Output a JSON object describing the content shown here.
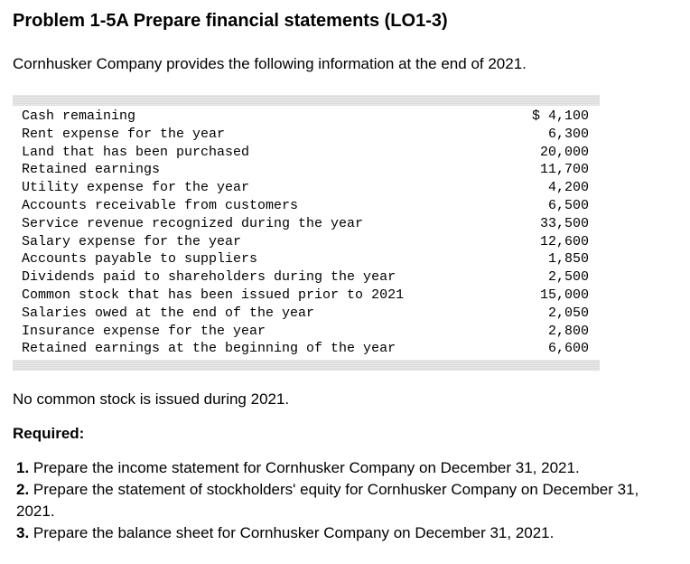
{
  "title": "Problem 1-5A Prepare financial statements (LO1-3)",
  "intro": "Cornhusker Company provides the following information at the end of 2021.",
  "table": {
    "rows": [
      {
        "label": "Cash remaining",
        "value": "$ 4,100"
      },
      {
        "label": "Rent expense for the year",
        "value": "6,300"
      },
      {
        "label": "Land that has been purchased",
        "value": "20,000"
      },
      {
        "label": "Retained earnings",
        "value": "11,700"
      },
      {
        "label": "Utility expense for the year",
        "value": "4,200"
      },
      {
        "label": "Accounts receivable from customers",
        "value": "6,500"
      },
      {
        "label": "Service revenue recognized during the year",
        "value": "33,500"
      },
      {
        "label": "Salary expense for the year",
        "value": "12,600"
      },
      {
        "label": "Accounts payable to suppliers",
        "value": "1,850"
      },
      {
        "label": "Dividends paid to shareholders during the year",
        "value": "2,500"
      },
      {
        "label": "Common stock that has been issued prior to 2021",
        "value": "15,000"
      },
      {
        "label": "Salaries owed at the end of the year",
        "value": "2,050"
      },
      {
        "label": "Insurance expense for the year",
        "value": "2,800"
      },
      {
        "label": "Retained earnings at the beginning of the year",
        "value": "6,600"
      }
    ]
  },
  "note": "No common stock is issued during 2021.",
  "required_heading": "Required:",
  "requirements": [
    {
      "num": "1.",
      "text": " Prepare the income statement for Cornhusker Company on December 31, 2021."
    },
    {
      "num": "2.",
      "text": " Prepare the statement of stockholders' equity for Cornhusker Company on December 31, 2021."
    },
    {
      "num": "3.",
      "text": " Prepare the balance sheet for Cornhusker Company on December 31, 2021."
    }
  ]
}
